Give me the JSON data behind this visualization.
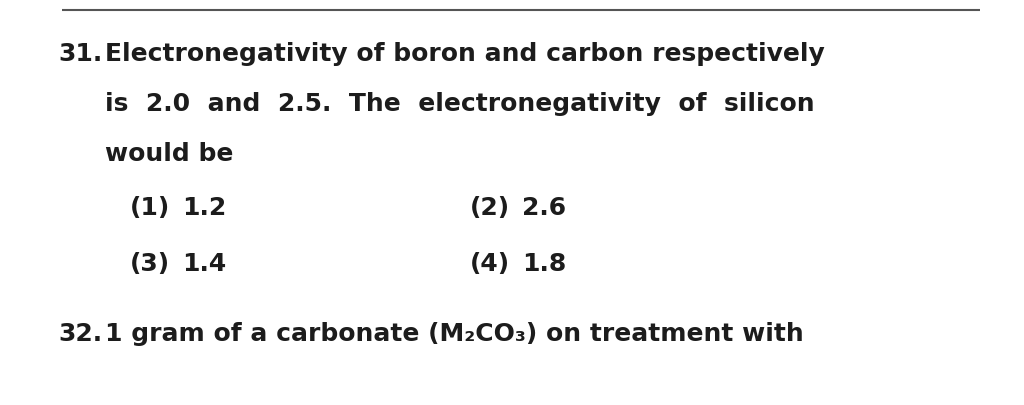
{
  "background_color": "#ffffff",
  "q31_num": "31.",
  "q31_line1": "Electronegativity of boron and carbon respectively",
  "q31_line2": "is  2.0  and  2.5.  The  electronegativity  of  silicon",
  "q31_line3": "would be",
  "opt1_label": "(1)",
  "opt1_val": "1.2",
  "opt2_label": "(2)",
  "opt2_val": "2.6",
  "opt3_label": "(3)",
  "opt3_val": "1.4",
  "opt4_label": "(4)",
  "opt4_val": "1.8",
  "q32_num": "32.",
  "q32_part1": "1 gram of a carbonate (M",
  "q32_sub1": "2",
  "q32_part2": "CO",
  "q32_sub2": "3",
  "q32_part3": ") on treatment with",
  "text_color": "#1c1c1c",
  "font_size": 18,
  "font_size_sub": 12,
  "line_color": "#555555"
}
